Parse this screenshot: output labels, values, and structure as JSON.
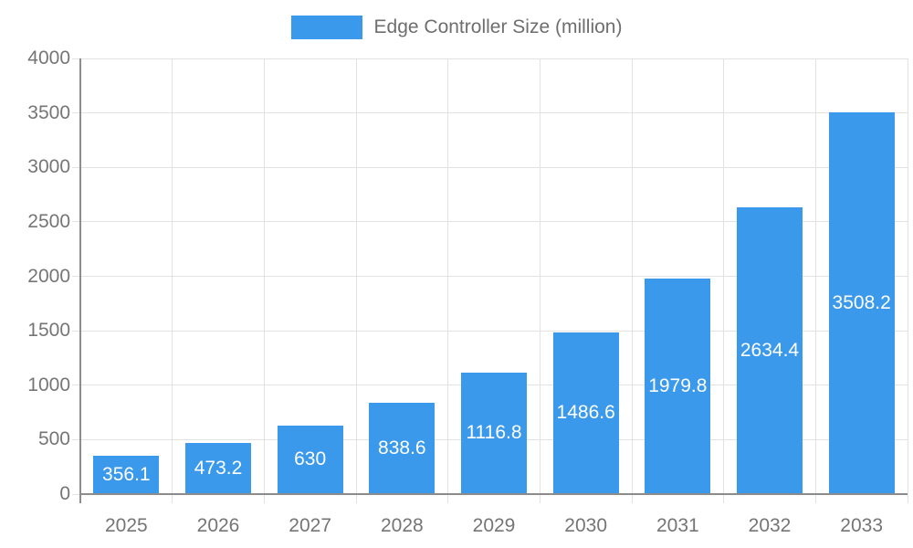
{
  "chart_data": {
    "type": "bar",
    "title": "Edge Controller Size (million)",
    "legend_position": "top",
    "grid": true,
    "categories": [
      "2025",
      "2026",
      "2027",
      "2028",
      "2029",
      "2030",
      "2031",
      "2032",
      "2033"
    ],
    "series": [
      {
        "name": "Edge Controller Size (million)",
        "color": "#3B99EB",
        "values": [
          356.1,
          473.2,
          630,
          838.6,
          1116.8,
          1486.6,
          1979.8,
          2634.4,
          3508.2
        ],
        "value_labels": [
          "356.1",
          "473.2",
          "630",
          "838.6",
          "1116.8",
          "1486.6",
          "1979.8",
          "2634.4",
          "3508.2"
        ]
      }
    ],
    "ylim": [
      0,
      4000
    ],
    "ytick_step": 500,
    "ytick_labels": [
      "0",
      "500",
      "1000",
      "1500",
      "2000",
      "2500",
      "3000",
      "3500",
      "4000"
    ],
    "colors": {
      "bar": "#3B99EB",
      "grid": "#E2E2E2",
      "axis": "#8C8C8C",
      "tick_text": "#757575",
      "legend_text": "#6E6E6E",
      "bar_label_text": "#FFFFFF",
      "background": "#FFFFFF"
    }
  }
}
